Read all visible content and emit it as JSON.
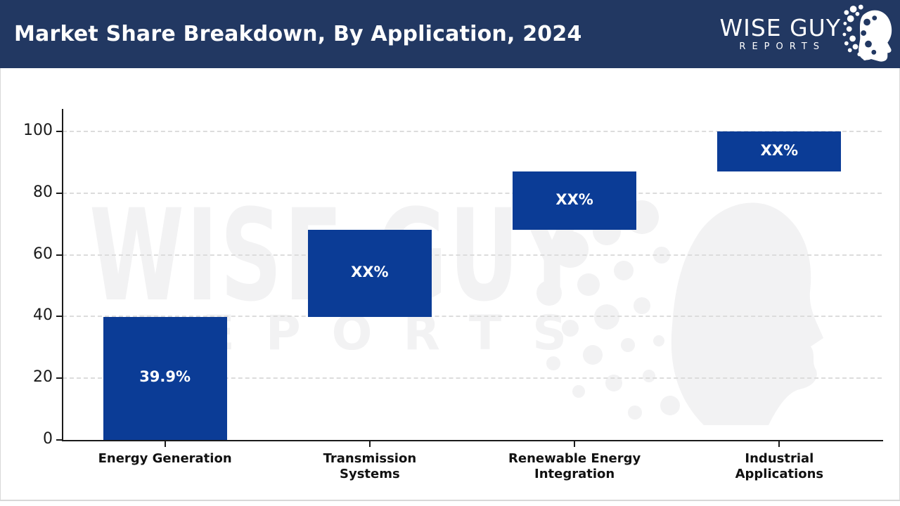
{
  "header": {
    "title": "Market Share Breakdown, By Application, 2024",
    "logo": {
      "line1": "WISE GUY",
      "line2": "REPORTS"
    }
  },
  "watermark": {
    "line1": "WISE GUY",
    "line2": "REPORTS"
  },
  "colors": {
    "header_bg": "#223862",
    "bar": "#0b3c96",
    "grid": "#dcdcdc",
    "axis": "#1a1a1a",
    "watermark": "#f2f2f3",
    "bar_label": "#ffffff"
  },
  "chart_data": {
    "type": "bar",
    "subtype": "floating-stacked-percentage",
    "title": "Market Share Breakdown, By Application, 2024",
    "categories": [
      "Energy Generation",
      "Transmission Systems",
      "Renewable Energy Integration",
      "Industrial Applications"
    ],
    "category_label_lines": [
      [
        "Energy Generation"
      ],
      [
        "Transmission",
        "Systems"
      ],
      [
        "Renewable Energy",
        "Integration"
      ],
      [
        "Industrial",
        "Applications"
      ]
    ],
    "segments": [
      {
        "category": "Energy Generation",
        "start": 0,
        "end": 39.9,
        "value": 39.9,
        "label": "39.9%"
      },
      {
        "category": "Transmission Systems",
        "start": 39.9,
        "end": 68,
        "value": 28.1,
        "label": "XX%"
      },
      {
        "category": "Renewable Energy Integration",
        "start": 68,
        "end": 87,
        "value": 19,
        "label": "XX%"
      },
      {
        "category": "Industrial Applications",
        "start": 87,
        "end": 100,
        "value": 13,
        "label": "XX%"
      }
    ],
    "xlabel": "",
    "ylabel": "",
    "ylim": [
      0,
      100
    ],
    "yticks": [
      0,
      20,
      40,
      60,
      80,
      100
    ],
    "grid": "horizontal dashed",
    "legend": "none"
  }
}
